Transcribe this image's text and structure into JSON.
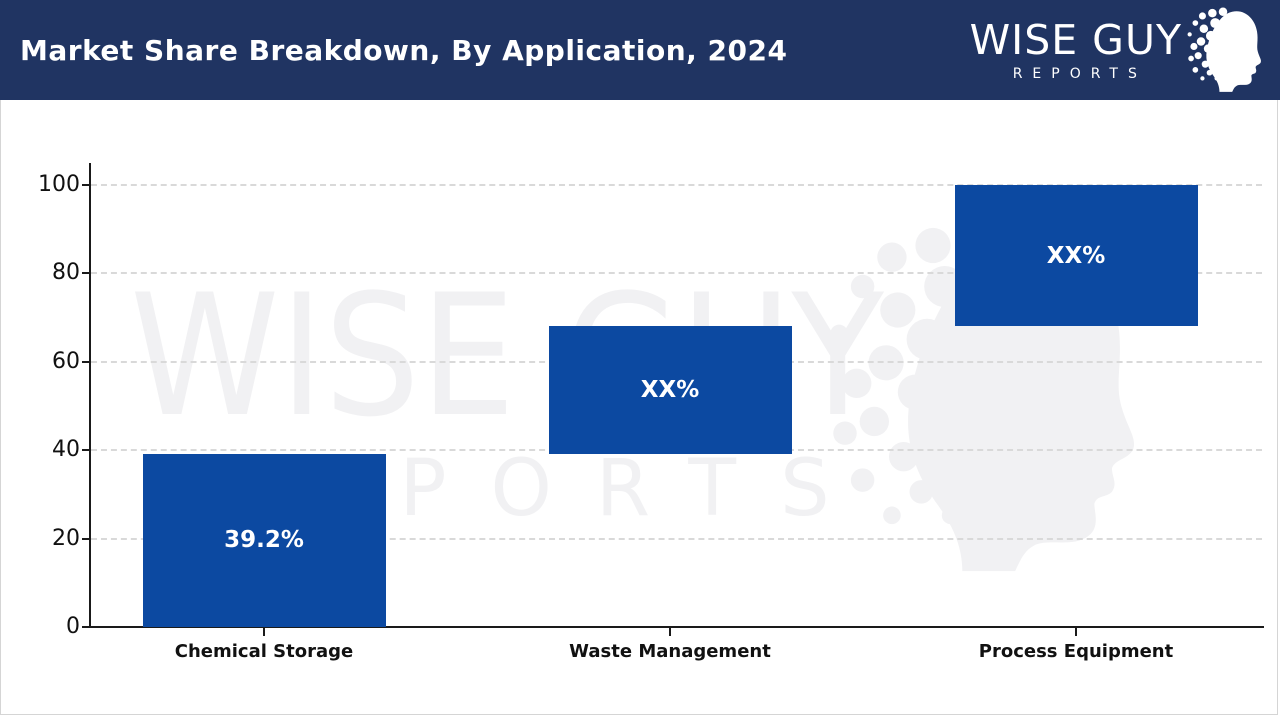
{
  "header": {
    "title": "Market Share Breakdown, By Application, 2024",
    "logo": {
      "line1": "WISE GUY",
      "line2": "REPORTS"
    }
  },
  "watermark": {
    "line1": "WISE GUY",
    "line2": "REPORTS"
  },
  "chart_data": {
    "type": "bar",
    "subtype": "stacked-waterfall",
    "title": "Market Share Breakdown, By Application, 2024",
    "categories": [
      "Chemical Storage",
      "Waste Management",
      "Process Equipment"
    ],
    "segments": [
      {
        "category": "Chemical Storage",
        "label": "39.2%",
        "start": 0,
        "end": 39.2
      },
      {
        "category": "Waste Management",
        "label": "XX%",
        "start": 39.2,
        "end": 68
      },
      {
        "category": "Process Equipment",
        "label": "XX%",
        "start": 68,
        "end": 100
      }
    ],
    "bar_labels": [
      "39.2%",
      "XX%",
      "XX%"
    ],
    "yticks": [
      0,
      20,
      40,
      60,
      80,
      100
    ],
    "ylim": [
      0,
      105
    ],
    "xlabel": "",
    "ylabel": "",
    "grid": "horizontal-dashed",
    "legend": "none",
    "bar_color": "#0c49a1",
    "bar_label_color": "#ffffff"
  },
  "colors": {
    "header_bg": "#203462",
    "axis": "#1a1a1a",
    "grid": "#d9d9d9",
    "watermark": "#f1f1f3",
    "card_border": "#d5d5d5"
  }
}
